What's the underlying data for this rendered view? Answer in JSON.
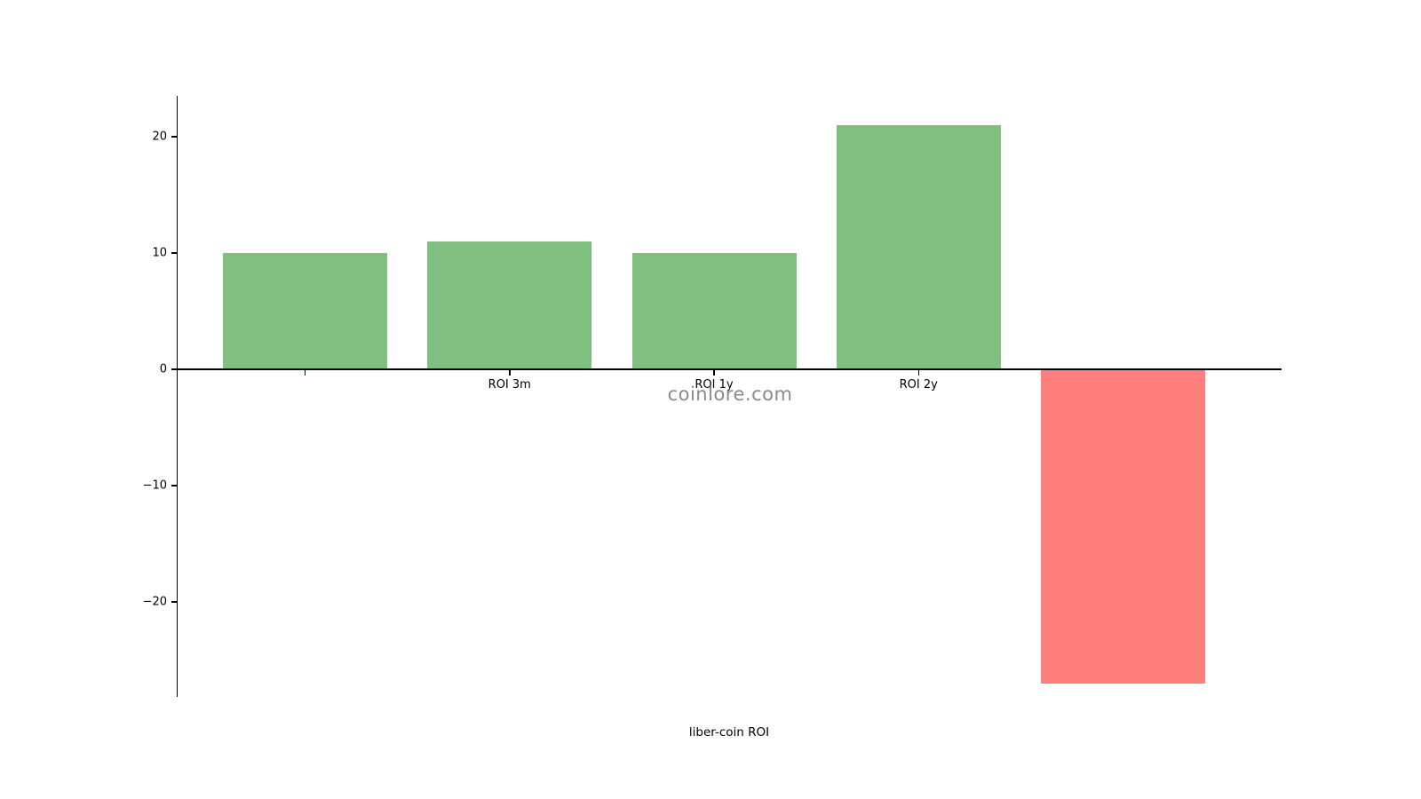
{
  "watermark": "coinlore.com",
  "chart_data": {
    "type": "bar",
    "title": "liber-coin ROI",
    "xlabel": "",
    "ylabel": "",
    "categories": [
      "",
      "ROI 3m",
      "ROI 1y",
      "ROI 2y",
      ""
    ],
    "values": [
      10,
      11,
      10,
      21,
      -27
    ],
    "colors": [
      "#7fbf7f",
      "#7fbf7f",
      "#7fbf7f",
      "#7fbf7f",
      "#ff7f7f"
    ],
    "positive_color": "#7fbf7f",
    "negative_color": "#ff7f7f",
    "x_ticks": [
      {
        "index": 0,
        "label": ""
      },
      {
        "index": 1,
        "label": "ROI 3m"
      },
      {
        "index": 2,
        "label": "ROI 1y"
      },
      {
        "index": 3,
        "label": "ROI 2y"
      }
    ],
    "y_ticks": [
      20,
      10,
      0,
      -10,
      -20
    ],
    "ylim": [
      -28.2,
      23.5
    ],
    "grid": false,
    "legend": null,
    "watermark": "coinlore.com",
    "axis_color": "#000000",
    "tick_label_color": "#000000",
    "watermark_color": "#8a8a8a"
  }
}
